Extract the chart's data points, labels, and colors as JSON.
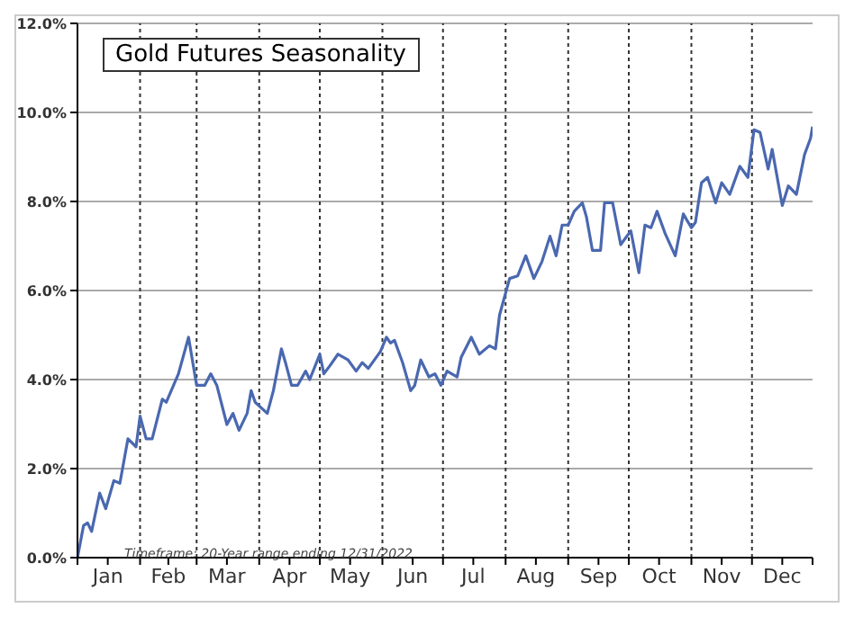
{
  "chart_data": {
    "type": "line",
    "title": "Gold Futures Seasonality",
    "annotations": [
      "Timeframe: 20-Year range ending 12/31/2022"
    ],
    "x": [
      "--01-01",
      "--01-04",
      "--01-06",
      "--01-08",
      "--01-12",
      "--01-15",
      "--01-19",
      "--01-22",
      "--01-26",
      "--01-30",
      "--02-01",
      "--02-04",
      "--02-07",
      "--02-12",
      "--02-14",
      "--02-17",
      "--02-20",
      "--02-25",
      "--03-01",
      "--03-05",
      "--03-08",
      "--03-11",
      "--03-16",
      "--03-19",
      "--03-22",
      "--03-26",
      "--03-28",
      "--03-30",
      "--04-05",
      "--04-08",
      "--04-12",
      "--04-14",
      "--04-17",
      "--04-20",
      "--04-24",
      "--04-26",
      "--05-01",
      "--05-03",
      "--05-06",
      "--05-10",
      "--05-15",
      "--05-19",
      "--05-22",
      "--05-25",
      "--05-31",
      "--06-03",
      "--06-05",
      "--06-07",
      "--06-11",
      "--06-15",
      "--06-17",
      "--06-20",
      "--06-24",
      "--06-27",
      "--06-30",
      "--07-03",
      "--07-08",
      "--07-10",
      "--07-15",
      "--07-19",
      "--07-24",
      "--07-27",
      "--07-29",
      "--08-03",
      "--08-07",
      "--08-11",
      "--08-15",
      "--08-19",
      "--08-23",
      "--08-26",
      "--08-29",
      "--09-01",
      "--09-04",
      "--09-08",
      "--09-10",
      "--09-13",
      "--09-17",
      "--09-19",
      "--09-23",
      "--09-27",
      "--10-02",
      "--10-06",
      "--10-09",
      "--10-12",
      "--10-15",
      "--10-19",
      "--10-24",
      "--10-28",
      "--11-01",
      "--11-03",
      "--11-06",
      "--11-09",
      "--11-13",
      "--11-16",
      "--11-20",
      "--11-25",
      "--11-29",
      "--12-02",
      "--12-05",
      "--12-09",
      "--12-11",
      "--12-16",
      "--12-19",
      "--12-23",
      "--12-27",
      "--12-30",
      "--12-31"
    ],
    "series": [
      {
        "color": "#4a68b0",
        "values": [
          0,
          0.72,
          0.78,
          0.59,
          1.45,
          1.1,
          1.73,
          1.67,
          2.67,
          2.49,
          3.18,
          2.67,
          2.67,
          3.56,
          3.49,
          3.81,
          4.13,
          4.95,
          3.87,
          3.87,
          4.13,
          3.87,
          2.99,
          3.24,
          2.86,
          3.24,
          3.75,
          3.49,
          3.24,
          3.75,
          4.69,
          4.38,
          3.87,
          3.87,
          4.19,
          4.0,
          4.57,
          4.13,
          4.31,
          4.57,
          4.44,
          4.19,
          4.38,
          4.25,
          4.63,
          4.95,
          4.82,
          4.88,
          4.38,
          3.75,
          3.87,
          4.44,
          4.06,
          4.13,
          3.87,
          4.19,
          4.06,
          4.5,
          4.95,
          4.57,
          4.76,
          4.69,
          5.45,
          6.27,
          6.33,
          6.78,
          6.27,
          6.65,
          7.22,
          6.78,
          7.47,
          7.47,
          7.78,
          7.97,
          7.66,
          6.9,
          6.9,
          7.97,
          7.97,
          7.03,
          7.34,
          6.4,
          7.47,
          7.41,
          7.78,
          7.28,
          6.78,
          7.72,
          7.41,
          7.53,
          8.42,
          8.54,
          7.97,
          8.42,
          8.16,
          8.79,
          8.54,
          9.61,
          9.55,
          8.73,
          9.17,
          7.91,
          8.35,
          8.16,
          9.05,
          9.42,
          9.68
        ]
      }
    ],
    "xlim": [
      "--01-01",
      "--12-31"
    ],
    "xticks": [
      {
        "value": "--01-01",
        "label": null
      },
      {
        "value": "--01-16",
        "label": "Jan"
      },
      {
        "value": "--02-01",
        "label": null
      },
      {
        "value": "--02-15",
        "label": "Feb"
      },
      {
        "value": "--03-01",
        "label": null
      },
      {
        "value": "--03-16",
        "label": "Mar"
      },
      {
        "value": "--04-01",
        "label": null
      },
      {
        "value": "--04-16",
        "label": "Apr"
      },
      {
        "value": "--05-01",
        "label": null
      },
      {
        "value": "--05-16",
        "label": "May"
      },
      {
        "value": "--06-01",
        "label": null
      },
      {
        "value": "--06-16",
        "label": "Jun"
      },
      {
        "value": "--07-01",
        "label": null
      },
      {
        "value": "--07-16",
        "label": "Jul"
      },
      {
        "value": "--08-01",
        "label": null
      },
      {
        "value": "--08-16",
        "label": "Aug"
      },
      {
        "value": "--09-01",
        "label": null
      },
      {
        "value": "--09-16",
        "label": "Sep"
      },
      {
        "value": "--10-01",
        "label": null
      },
      {
        "value": "--10-16",
        "label": "Oct"
      },
      {
        "value": "--11-01",
        "label": null
      },
      {
        "value": "--11-16",
        "label": "Nov"
      },
      {
        "value": "--12-01",
        "label": null
      },
      {
        "value": "--12-16",
        "label": "Dec"
      },
      {
        "value": "--12-31",
        "label": null
      }
    ],
    "ylim": [
      0,
      12
    ],
    "yticks": [
      {
        "value": 0,
        "label": "0.0%"
      },
      {
        "value": 2,
        "label": "2.0%"
      },
      {
        "value": 4,
        "label": "4.0%"
      },
      {
        "value": 6,
        "label": "6.0%"
      },
      {
        "value": 8,
        "label": "8.0%"
      },
      {
        "value": 10,
        "label": "10.0%"
      },
      {
        "value": 12,
        "label": "12.0%"
      }
    ],
    "grid": "y",
    "ref_lines": [
      {
        "axis": "x",
        "value": "--02-01",
        "color": "#333333",
        "line_style": "dotted"
      },
      {
        "axis": "x",
        "value": "--03-01",
        "color": "#333333",
        "line_style": "dotted"
      },
      {
        "axis": "x",
        "value": "--04-01",
        "color": "#333333",
        "line_style": "dotted"
      },
      {
        "axis": "x",
        "value": "--05-01",
        "color": "#333333",
        "line_style": "dotted"
      },
      {
        "axis": "x",
        "value": "--06-01",
        "color": "#333333",
        "line_style": "dotted"
      },
      {
        "axis": "x",
        "value": "--07-01",
        "color": "#333333",
        "line_style": "dotted"
      },
      {
        "axis": "x",
        "value": "--08-01",
        "color": "#333333",
        "line_style": "dotted"
      },
      {
        "axis": "x",
        "value": "--09-01",
        "color": "#333333",
        "line_style": "dotted"
      },
      {
        "axis": "x",
        "value": "--10-01",
        "color": "#333333",
        "line_style": "dotted"
      },
      {
        "axis": "x",
        "value": "--11-01",
        "color": "#333333",
        "line_style": "dotted"
      },
      {
        "axis": "x",
        "value": "--12-01",
        "color": "#333333",
        "line_style": "dotted"
      }
    ]
  }
}
